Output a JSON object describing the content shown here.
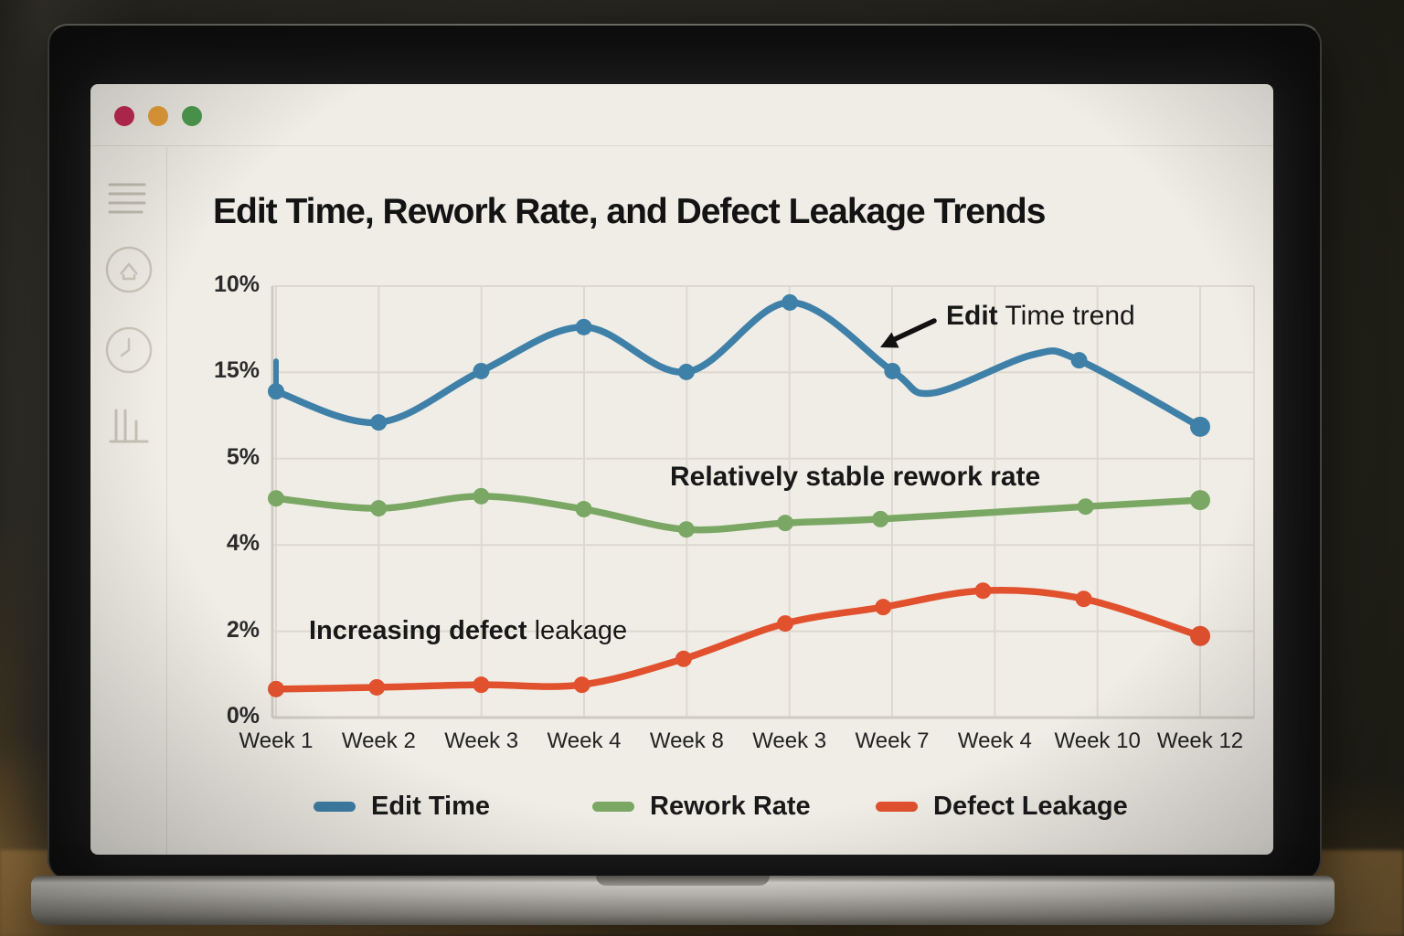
{
  "window": {
    "traffic_lights": {
      "close_color": "#c22a52",
      "minimize_color": "#e9a03a",
      "zoom_color": "#4d9c50"
    },
    "sidebar_icons": [
      "menu-icon",
      "home-icon",
      "clock-icon",
      "bar-chart-icon"
    ]
  },
  "chart_data": {
    "type": "line",
    "title": "Edit Time, Rework Rate, and Defect Leakage Trends",
    "x_tick_labels": [
      "Week 1",
      "Week 2",
      "Week 3",
      "Week 4",
      "Week 8",
      "Week 3",
      "Week 7",
      "Week 4",
      "Week 10",
      "Week 12"
    ],
    "y_tick_labels": [
      "10%",
      "15%",
      "5%",
      "4%",
      "2%",
      "0%"
    ],
    "y_axis_note": "tick labels exactly as displayed (non-monotonic), evenly spaced top to bottom",
    "grid": true,
    "legend_position": "bottom",
    "value_scale": "v: 0 = bottom axis line (0% tick), 1 = top gridline (10% tick); x: 0 = Week 1 column, 1 = Week 12 column",
    "series": [
      {
        "name": "Edit Time",
        "color": "#3f80a8",
        "start_stub": {
          "x": 0,
          "v1": 0.756,
          "v2": 0.826
        },
        "points": [
          {
            "x": 0,
            "v": 0.756
          },
          {
            "x": 0.111,
            "v": 0.684
          },
          {
            "x": 0.222,
            "v": 0.803
          },
          {
            "x": 0.333,
            "v": 0.905
          },
          {
            "x": 0.444,
            "v": 0.801
          },
          {
            "x": 0.556,
            "v": 0.962
          },
          {
            "x": 0.667,
            "v": 0.803
          },
          {
            "x": 0.71,
            "v": 0.752,
            "dot": false
          },
          {
            "x": 0.819,
            "v": 0.841,
            "dot": false
          },
          {
            "x": 0.869,
            "v": 0.828
          },
          {
            "x": 1,
            "v": 0.674
          }
        ]
      },
      {
        "name": "Rework Rate",
        "color": "#7ba765",
        "points": [
          {
            "x": 0,
            "v": 0.508
          },
          {
            "x": 0.111,
            "v": 0.485
          },
          {
            "x": 0.222,
            "v": 0.513
          },
          {
            "x": 0.333,
            "v": 0.483
          },
          {
            "x": 0.444,
            "v": 0.436
          },
          {
            "x": 0.551,
            "v": 0.451
          },
          {
            "x": 0.654,
            "v": 0.46
          },
          {
            "x": 0.876,
            "v": 0.489
          },
          {
            "x": 1,
            "v": 0.504
          }
        ]
      },
      {
        "name": "Defect Leakage",
        "color": "#e1512e",
        "points": [
          {
            "x": 0,
            "v": 0.066
          },
          {
            "x": 0.109,
            "v": 0.07
          },
          {
            "x": 0.222,
            "v": 0.076
          },
          {
            "x": 0.331,
            "v": 0.076
          },
          {
            "x": 0.441,
            "v": 0.136
          },
          {
            "x": 0.551,
            "v": 0.218
          },
          {
            "x": 0.657,
            "v": 0.256
          },
          {
            "x": 0.765,
            "v": 0.294
          },
          {
            "x": 0.874,
            "v": 0.275
          },
          {
            "x": 1,
            "v": 0.189
          }
        ]
      }
    ],
    "legend": [
      {
        "label": "Edit Time",
        "color": "#3f80a8"
      },
      {
        "label": "Rework Rate",
        "color": "#7ba765"
      },
      {
        "label": "Defect Leakage",
        "color": "#e1512e"
      }
    ],
    "annotations": [
      {
        "id": "edit-time-trend",
        "bold": "Edit",
        "rest": " Time trend",
        "has_arrow": true
      },
      {
        "id": "stable-rework",
        "bold": "Relatively stable rework rate",
        "rest": ""
      },
      {
        "id": "defect-leakage",
        "bold": "Increasing defect",
        "rest": " leakage"
      }
    ],
    "colors": {
      "grid": "#ddd9d0",
      "axis": "#cfccc3",
      "background": "#f0ede6",
      "text": "#1c1c1c"
    }
  }
}
